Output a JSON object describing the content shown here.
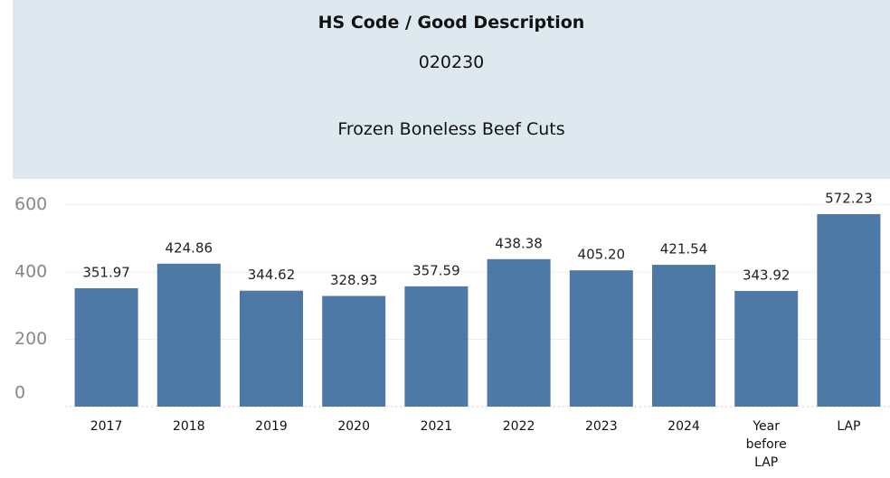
{
  "header": {
    "title": "HS Code  /  Good Description",
    "code": "020230",
    "description": "Frozen Boneless Beef Cuts"
  },
  "chart_data": {
    "type": "bar",
    "categories": [
      "2017",
      "2018",
      "2019",
      "2020",
      "2021",
      "2022",
      "2023",
      "2024",
      "Year before LAP",
      "LAP"
    ],
    "values": [
      351.97,
      424.86,
      344.62,
      328.93,
      357.59,
      438.38,
      405.2,
      421.54,
      343.92,
      572.23
    ],
    "value_labels": [
      "351.97",
      "424.86",
      "344.62",
      "328.93",
      "357.59",
      "438.38",
      "405.20",
      "421.54",
      "343.92",
      "572.23"
    ],
    "color": "#4e79a7",
    "ylim": [
      0,
      650
    ],
    "yticks": [
      0,
      200,
      400,
      600
    ],
    "grid": true
  }
}
